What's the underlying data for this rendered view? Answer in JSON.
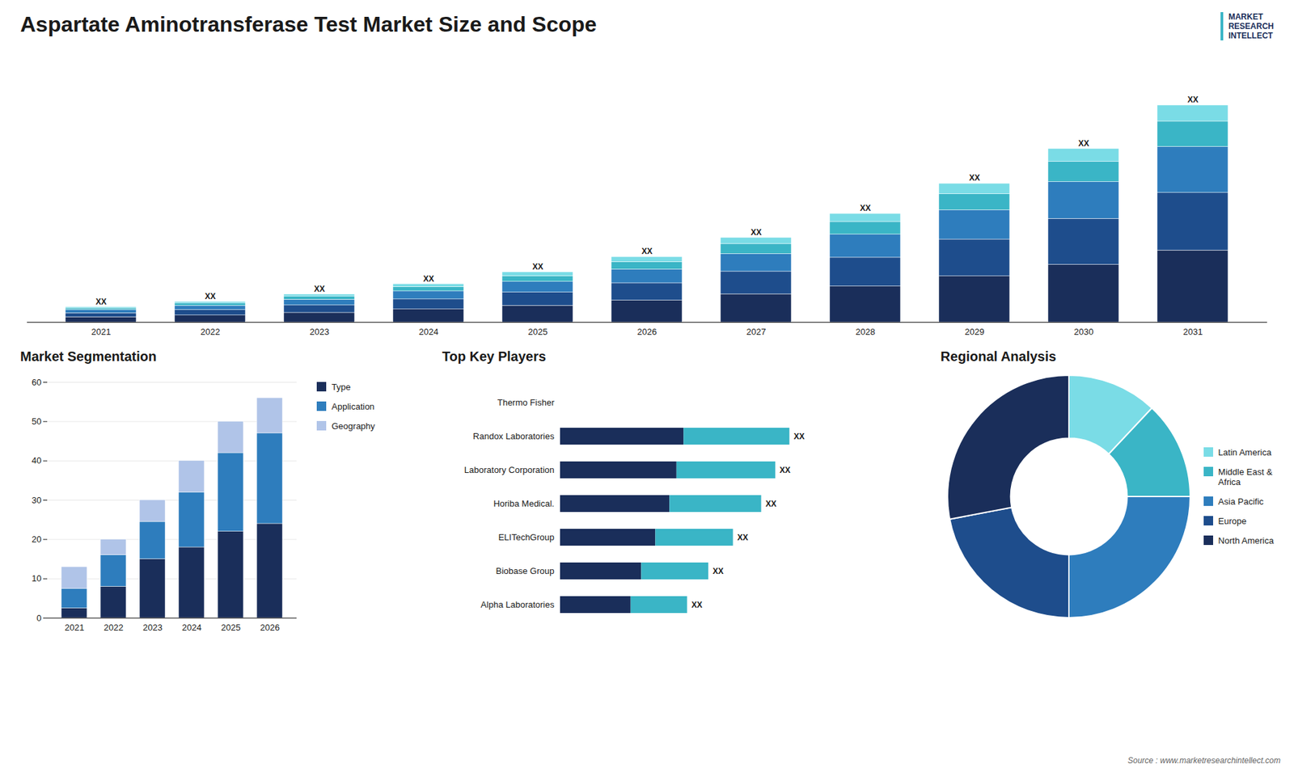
{
  "chart_data": [
    {
      "type": "bar",
      "title": "Aspartate Aminotransferase Test Market Size and Scope",
      "stacked": true,
      "categories": [
        "2021",
        "2022",
        "2023",
        "2024",
        "2025",
        "2026",
        "2027",
        "2028",
        "2029",
        "2030",
        "2031"
      ],
      "series": [
        {
          "color": "#1a2e5a",
          "values": [
            1.8,
            2.4,
            3.3,
            4.5,
            5.8,
            7.6,
            9.8,
            12.5,
            16.0,
            20.0,
            25.0
          ]
        },
        {
          "color": "#1e4d8c",
          "values": [
            1.4,
            1.9,
            2.6,
            3.5,
            4.6,
            6.0,
            7.8,
            10.0,
            12.8,
            16.0,
            20.0
          ]
        },
        {
          "color": "#2e7dbd",
          "values": [
            1.1,
            1.5,
            2.0,
            2.8,
            3.7,
            4.8,
            6.2,
            8.0,
            10.2,
            12.8,
            16.0
          ]
        },
        {
          "color": "#3ab5c6",
          "values": [
            0.6,
            0.8,
            1.1,
            1.5,
            2.0,
            2.6,
            3.4,
            4.4,
            5.6,
            7.0,
            8.8
          ]
        },
        {
          "color": "#7adce6",
          "values": [
            0.4,
            0.5,
            0.7,
            1.0,
            1.3,
            1.7,
            2.2,
            2.8,
            3.6,
            4.5,
            5.6
          ]
        }
      ],
      "ylim": [
        0,
        88.972
      ],
      "tick_labels": "x",
      "data_labels": true,
      "value_labels": [
        "XX",
        "XX",
        "XX",
        "XX",
        "XX",
        "XX",
        "XX",
        "XX",
        "XX",
        "XX",
        "XX"
      ],
      "annotations": [
        "MARKET",
        "RESEARCH",
        "INTELLECT",
        "Source : www.marketresearchintellect.com"
      ]
    },
    {
      "type": "bar",
      "title": "Market Segmentation",
      "stacked": true,
      "categories": [
        "2021",
        "2022",
        "2023",
        "2024",
        "2025",
        "2026"
      ],
      "series": [
        {
          "name": "Type",
          "color": "#1a2e5a",
          "values": [
            2.5,
            8.0,
            15.0,
            18.0,
            22.0,
            24.0
          ]
        },
        {
          "name": "Application",
          "color": "#2e7dbd",
          "values": [
            5.0,
            8.0,
            9.5,
            14.0,
            20.0,
            23.0
          ]
        },
        {
          "name": "Geography",
          "color": "#b0c4e8",
          "values": [
            5.5,
            4.0,
            5.5,
            8.0,
            8.0,
            9.0
          ]
        }
      ],
      "ylim": [
        0,
        60
      ],
      "yticks": [
        0,
        10,
        20,
        30,
        40,
        50,
        60
      ],
      "grid": true,
      "legend": "right"
    },
    {
      "type": "bar",
      "title": "Top Key Players",
      "orientation": "horizontal",
      "stacked": true,
      "categories": [
        "Thermo Fisher",
        "Randox Laboratories",
        "Laboratory Corporation",
        "Horiba Medical.",
        "ELITechGroup",
        "Biobase Group",
        "Alpha Laboratories"
      ],
      "series": [
        {
          "color": "#1a2e5a",
          "values": [
            0.0,
            3.5,
            3.3,
            3.1,
            2.7,
            2.3,
            2.0
          ]
        },
        {
          "color": "#3ab5c6",
          "values": [
            0.0,
            3.0,
            2.8,
            2.6,
            2.2,
            1.9,
            1.6
          ]
        }
      ],
      "xlim": [
        0,
        8.5
      ],
      "tick_labels": "y",
      "data_labels": true,
      "value_labels": [
        null,
        "XX",
        "XX",
        "XX",
        "XX",
        "XX",
        "XX"
      ]
    },
    {
      "type": "pie",
      "title": "Regional Analysis",
      "categories": [
        "Latin America",
        "Middle East &\nAfrica",
        "Asia Pacific",
        "Europe",
        "North America"
      ],
      "values": [
        12,
        13,
        25,
        22,
        28
      ],
      "colors": [
        "#7adce6",
        "#3ab5c6",
        "#2e7dbd",
        "#1e4d8c",
        "#1a2e5a"
      ],
      "legend": "right"
    }
  ]
}
